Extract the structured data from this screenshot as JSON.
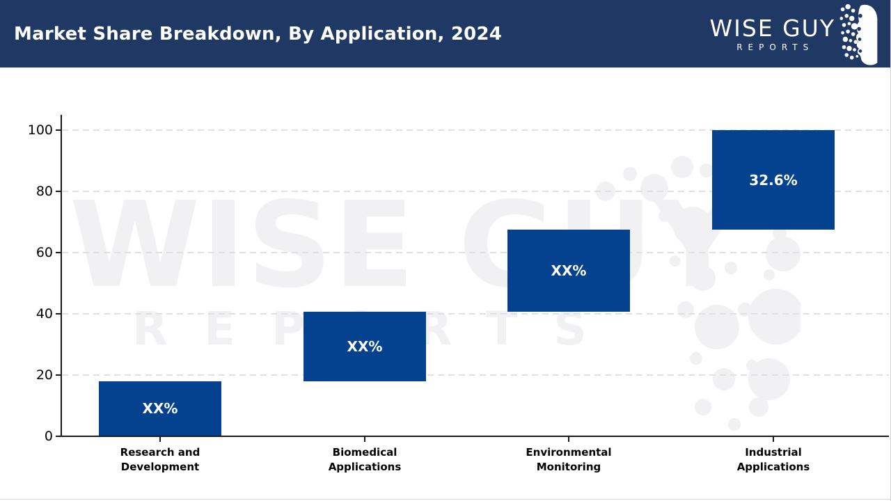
{
  "header": {
    "title": "Market Share Breakdown, By Application, 2024",
    "logo": {
      "primary": "WISE GUY",
      "secondary": "REPORTS"
    }
  },
  "watermark": {
    "primary": "WISE GUY",
    "secondary": "REPORTS"
  },
  "chart_data": {
    "type": "bar",
    "subtype": "floating-segment-waterfall",
    "title": "Market Share Breakdown, By Application, 2024",
    "categories": [
      "Research and\nDevelopment",
      "Biomedical\nApplications",
      "Environmental\nMonitoring",
      "Industrial\nApplications"
    ],
    "segments": [
      {
        "category": "Research and Development",
        "start": 0,
        "end": 18,
        "size": 18,
        "label": "XX%"
      },
      {
        "category": "Biomedical Applications",
        "start": 18,
        "end": 40.7,
        "size": 22.7,
        "label": "XX%"
      },
      {
        "category": "Environmental Monitoring",
        "start": 40.7,
        "end": 67.4,
        "size": 26.7,
        "label": "XX%"
      },
      {
        "category": "Industrial Applications",
        "start": 67.4,
        "end": 100,
        "size": 32.6,
        "label": "32.6%"
      }
    ],
    "xlabel": "",
    "ylabel": "",
    "ylim": [
      0,
      100
    ],
    "yticks": [
      0,
      20,
      40,
      60,
      80,
      100
    ],
    "grid": "dashed-horizontal",
    "legend": "none"
  },
  "colors": {
    "header_bg": "#1f3864",
    "bar": "#04418f",
    "bar_label": "#ffffff",
    "grid": "#e0e0e0",
    "axis": "#1a1a1a",
    "watermark": "#f1f1f3",
    "figure_border": "#d4d4d4"
  }
}
